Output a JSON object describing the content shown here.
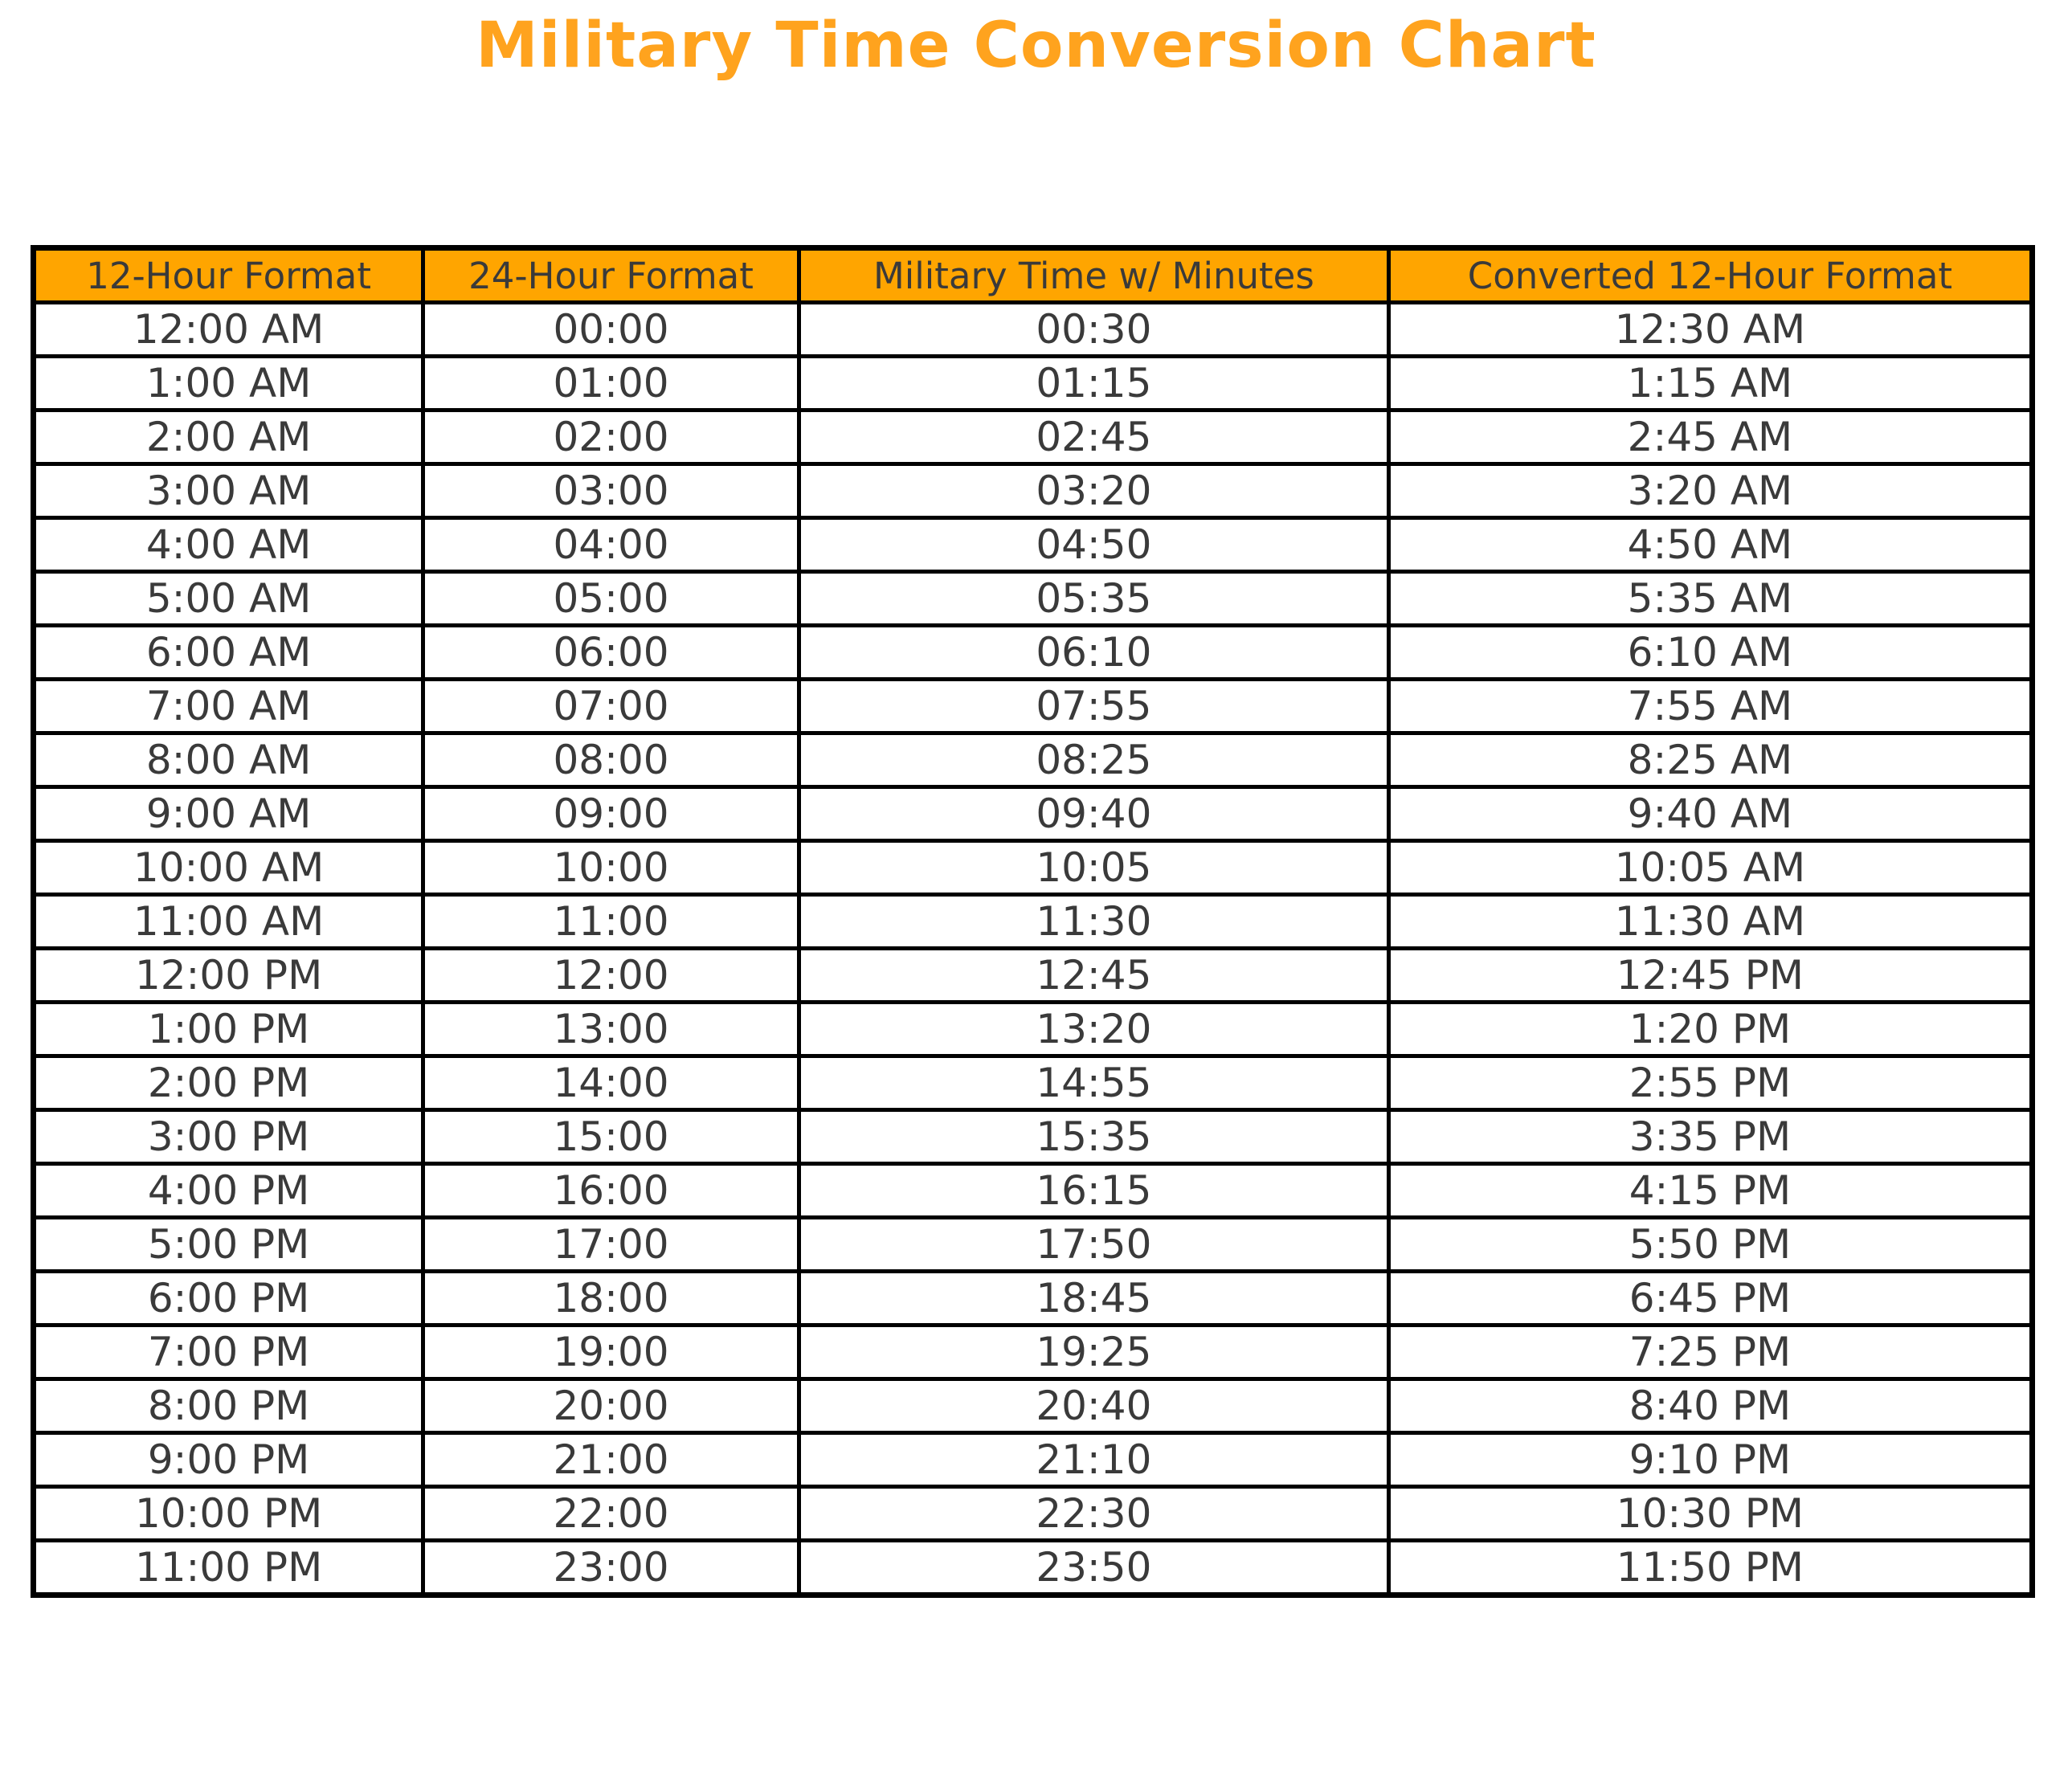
{
  "title": "Military Time Conversion Chart",
  "colors": {
    "title_text": "#FFA31E",
    "header_bg": "#FFA500",
    "header_text": "#3A3A3A",
    "cell_text": "#3A3A3A",
    "border": "#000000",
    "background": "#FFFFFF"
  },
  "chart_data": {
    "type": "table",
    "title": "Military Time Conversion Chart",
    "columns": [
      "12-Hour Format",
      "24-Hour Format",
      "Military Time w/ Minutes",
      "Converted 12-Hour Format"
    ],
    "rows": [
      [
        "12:00 AM",
        "00:00",
        "00:30",
        "12:30 AM"
      ],
      [
        "1:00 AM",
        "01:00",
        "01:15",
        "1:15 AM"
      ],
      [
        "2:00 AM",
        "02:00",
        "02:45",
        "2:45 AM"
      ],
      [
        "3:00 AM",
        "03:00",
        "03:20",
        "3:20 AM"
      ],
      [
        "4:00 AM",
        "04:00",
        "04:50",
        "4:50 AM"
      ],
      [
        "5:00 AM",
        "05:00",
        "05:35",
        "5:35 AM"
      ],
      [
        "6:00 AM",
        "06:00",
        "06:10",
        "6:10 AM"
      ],
      [
        "7:00 AM",
        "07:00",
        "07:55",
        "7:55 AM"
      ],
      [
        "8:00 AM",
        "08:00",
        "08:25",
        "8:25 AM"
      ],
      [
        "9:00 AM",
        "09:00",
        "09:40",
        "9:40 AM"
      ],
      [
        "10:00 AM",
        "10:00",
        "10:05",
        "10:05 AM"
      ],
      [
        "11:00 AM",
        "11:00",
        "11:30",
        "11:30 AM"
      ],
      [
        "12:00 PM",
        "12:00",
        "12:45",
        "12:45 PM"
      ],
      [
        "1:00 PM",
        "13:00",
        "13:20",
        "1:20 PM"
      ],
      [
        "2:00 PM",
        "14:00",
        "14:55",
        "2:55 PM"
      ],
      [
        "3:00 PM",
        "15:00",
        "15:35",
        "3:35 PM"
      ],
      [
        "4:00 PM",
        "16:00",
        "16:15",
        "4:15 PM"
      ],
      [
        "5:00 PM",
        "17:00",
        "17:50",
        "5:50 PM"
      ],
      [
        "6:00 PM",
        "18:00",
        "18:45",
        "6:45 PM"
      ],
      [
        "7:00 PM",
        "19:00",
        "19:25",
        "7:25 PM"
      ],
      [
        "8:00 PM",
        "20:00",
        "20:40",
        "8:40 PM"
      ],
      [
        "9:00 PM",
        "21:00",
        "21:10",
        "9:10 PM"
      ],
      [
        "10:00 PM",
        "22:00",
        "22:30",
        "10:30 PM"
      ],
      [
        "11:00 PM",
        "23:00",
        "23:50",
        "11:50 PM"
      ]
    ]
  }
}
